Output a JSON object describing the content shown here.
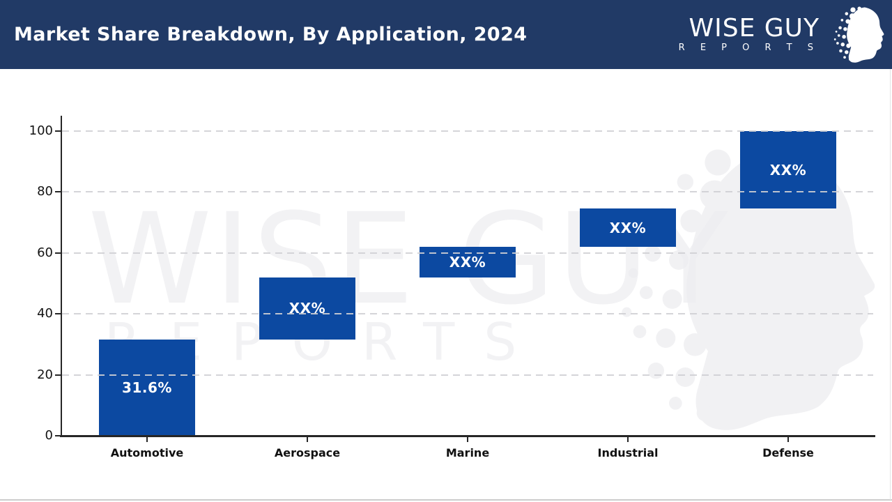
{
  "header": {
    "title": "Market Share Breakdown, By Application, 2024",
    "logo": {
      "line1": "WISE GUY",
      "line2": "R E P O R T S"
    }
  },
  "watermark": {
    "line1": "WISE GUY",
    "line2": "REPORTS"
  },
  "colors": {
    "header_bg": "#213a66",
    "bar": "#0c49a1",
    "bar_label": "#ffffff",
    "grid": "#d0d0d4",
    "axis": "#262626",
    "watermark": "#f2f2f4"
  },
  "chart_data": {
    "type": "bar",
    "subtype": "waterfall",
    "title": "Market Share Breakdown, By Application, 2024",
    "categories": [
      "Automotive",
      "Aerospace",
      "Marine",
      "Industrial",
      "Defense"
    ],
    "segments": [
      {
        "category": "Automotive",
        "start": 0,
        "end": 31.6,
        "label": "31.6%"
      },
      {
        "category": "Aerospace",
        "start": 31.6,
        "end": 52,
        "label": "XX%"
      },
      {
        "category": "Marine",
        "start": 52,
        "end": 62,
        "label": "XX%"
      },
      {
        "category": "Industrial",
        "start": 62,
        "end": 74.5,
        "label": "XX%"
      },
      {
        "category": "Defense",
        "start": 74.5,
        "end": 100,
        "label": "XX%"
      }
    ],
    "ylim": [
      0,
      105
    ],
    "yticks": [
      0,
      20,
      40,
      60,
      80,
      100
    ],
    "xlabel": "",
    "ylabel": "",
    "grid": "horizontal-dashed",
    "legend": null
  }
}
